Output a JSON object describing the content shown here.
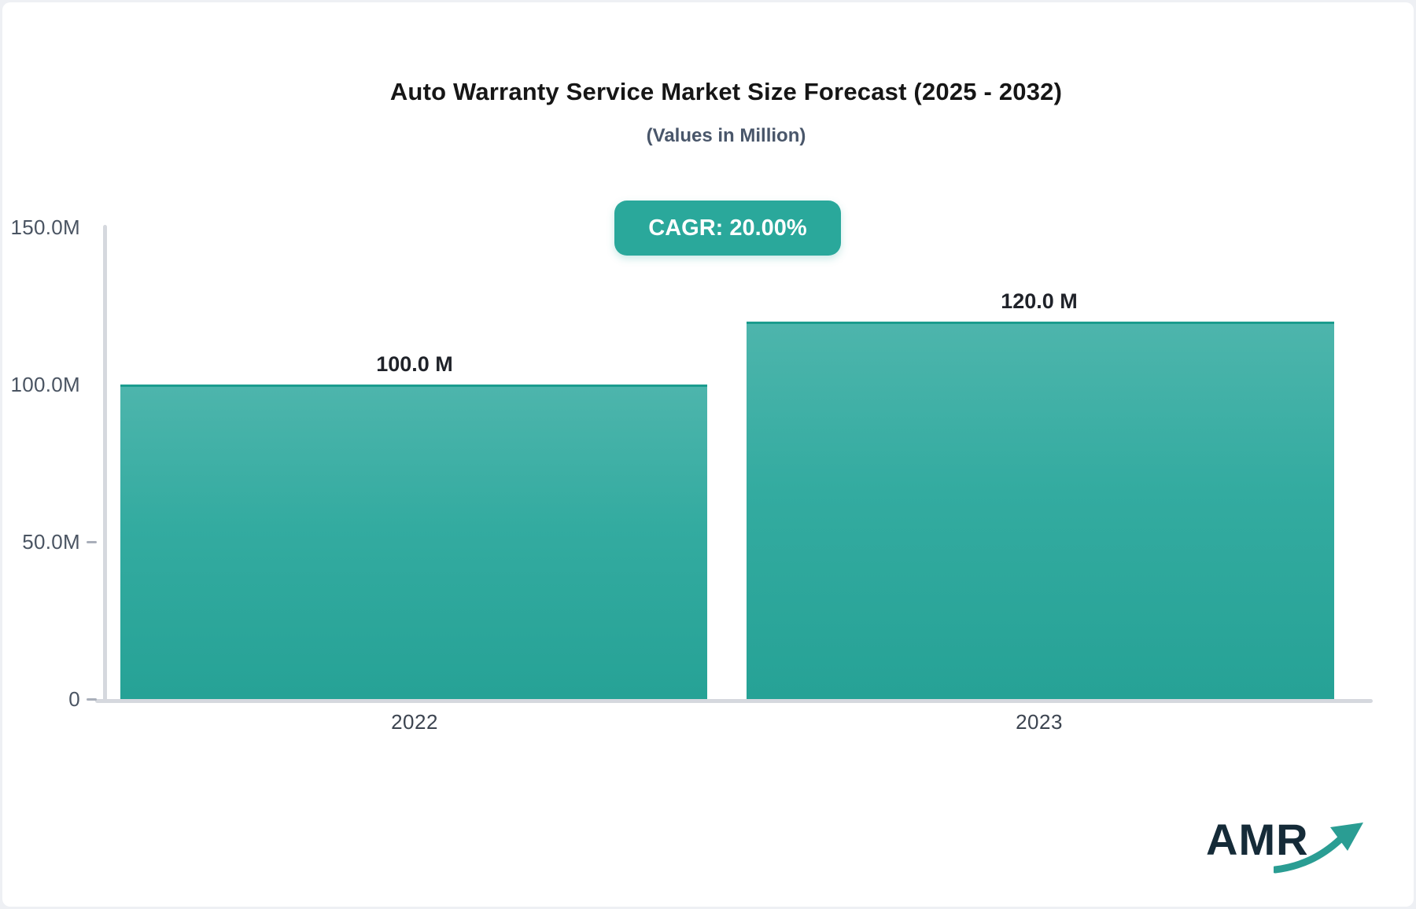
{
  "header": {
    "title": "Auto Warranty Service Market Size Forecast (2025 - 2032)",
    "subtitle": "(Values in Million)",
    "cagr_badge": "CAGR: 20.00%"
  },
  "chart_data": {
    "type": "bar",
    "title": "Auto Warranty Service Market Size Forecast (2025 - 2032)",
    "subtitle": "(Values in Million)",
    "unit": "Million",
    "categories": [
      "2022",
      "2023"
    ],
    "values": [
      100.0,
      120.0
    ],
    "bar_labels": [
      "100.0 M",
      "120.0 M"
    ],
    "cagr_percent": 20.0,
    "ylim": [
      0,
      150
    ],
    "yticks": [
      {
        "value": 150,
        "label": "150.0M",
        "dash": false
      },
      {
        "value": 100,
        "label": "100.0M",
        "dash": false
      },
      {
        "value": 50,
        "label": "50.0M",
        "dash": true
      },
      {
        "value": 0,
        "label": "0",
        "dash": true
      }
    ],
    "grid": false,
    "legend": false
  },
  "logo": {
    "text": "AMR"
  },
  "colors": {
    "accent_teal": "#2aa89b",
    "bar_gradient_top": "#4db5ac",
    "bar_gradient_bottom": "#26a296",
    "bar_top_border": "#1b9c8e",
    "axis_line": "#d5d8de",
    "tick_text": "#4a5462",
    "title_text": "#161616",
    "subtitle_text": "#49566a",
    "logo_navy": "#152b38"
  }
}
